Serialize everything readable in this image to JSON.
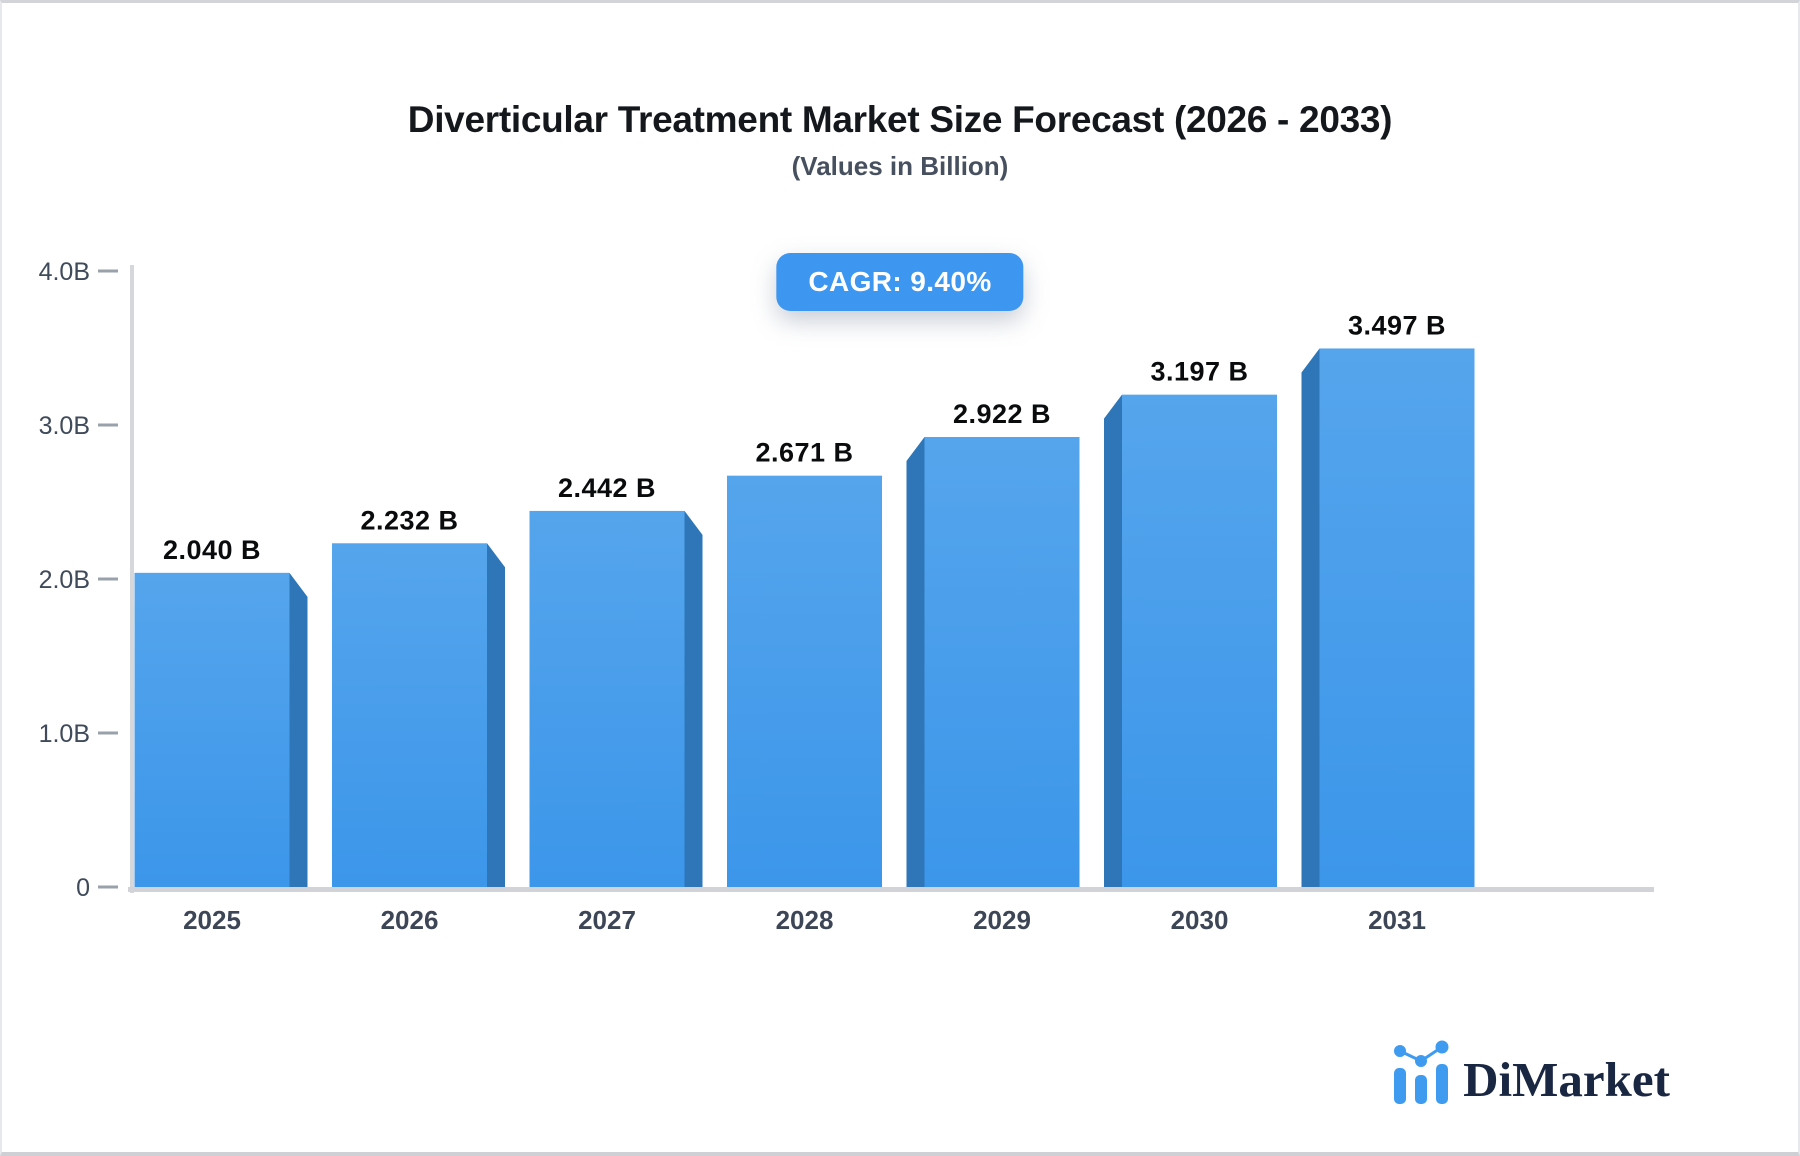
{
  "header": {
    "title": "Diverticular Treatment Market Size Forecast (2026 - 2033)",
    "subtitle": "(Values in Billion)"
  },
  "badge": {
    "label": "CAGR: 9.40%",
    "bg_color": "#3d96ef"
  },
  "chart_data": {
    "type": "bar",
    "title": "Diverticular Treatment Market Size Forecast (2026 - 2033)",
    "subtitle": "(Values in Billion)",
    "categories": [
      "2025",
      "2026",
      "2027",
      "2028",
      "2029",
      "2030",
      "2031"
    ],
    "values": [
      2.04,
      2.232,
      2.442,
      2.671,
      2.922,
      3.197,
      3.497
    ],
    "bar_labels": [
      "2.040 B",
      "2.232 B",
      "2.442 B",
      "2.671 B",
      "2.922 B",
      "3.197 B",
      "3.497 B"
    ],
    "xlabel": "",
    "ylabel": "",
    "ylim": [
      0,
      4
    ],
    "yticks": [
      {
        "value": 0,
        "label": "0"
      },
      {
        "value": 1,
        "label": "1.0B"
      },
      {
        "value": 2,
        "label": "2.0B"
      },
      {
        "value": 3,
        "label": "3.0B"
      },
      {
        "value": 4,
        "label": "4.0B"
      }
    ],
    "grid": false,
    "legend": "none",
    "colors": {
      "bar_face_top": "#55a5ec",
      "bar_face_bottom": "#3c96ea",
      "bar_side": "#2e76b8",
      "axis_line": "#d6d7db",
      "baseline": "#d2d3d9",
      "tick_dash": "#99a1ab",
      "tick_label": "#3f4a5a",
      "year_label": "#3d4656",
      "value_label": "#0a0b0d"
    }
  },
  "logo": {
    "text": "DiMarket",
    "icon": "bar-chart-sparkline-icon",
    "text_color": "#1a2742",
    "accent_color": "#3f9bf0"
  }
}
